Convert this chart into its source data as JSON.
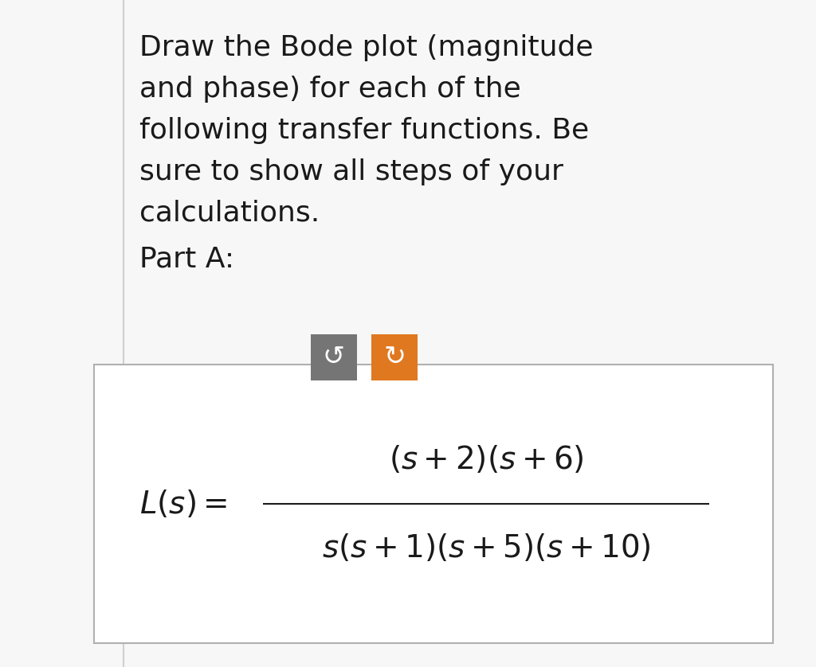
{
  "background_color": "#f7f7f7",
  "card_background": "#ffffff",
  "text_color": "#1a1a1a",
  "text_fontsize": 26,
  "part_fontsize": 26,
  "button1_color": "#757575",
  "button2_color": "#e07820",
  "formula_border_color": "#b0b0b0",
  "formula_fontsize": 28,
  "left_border_color": "#d0d0d0",
  "main_lines": [
    "Draw the Bode plot (magnitude",
    "and phase) for each of the",
    "following transfer functions. Be",
    "sure to show all steps of your",
    "calculations."
  ],
  "part_label": "Part A:"
}
